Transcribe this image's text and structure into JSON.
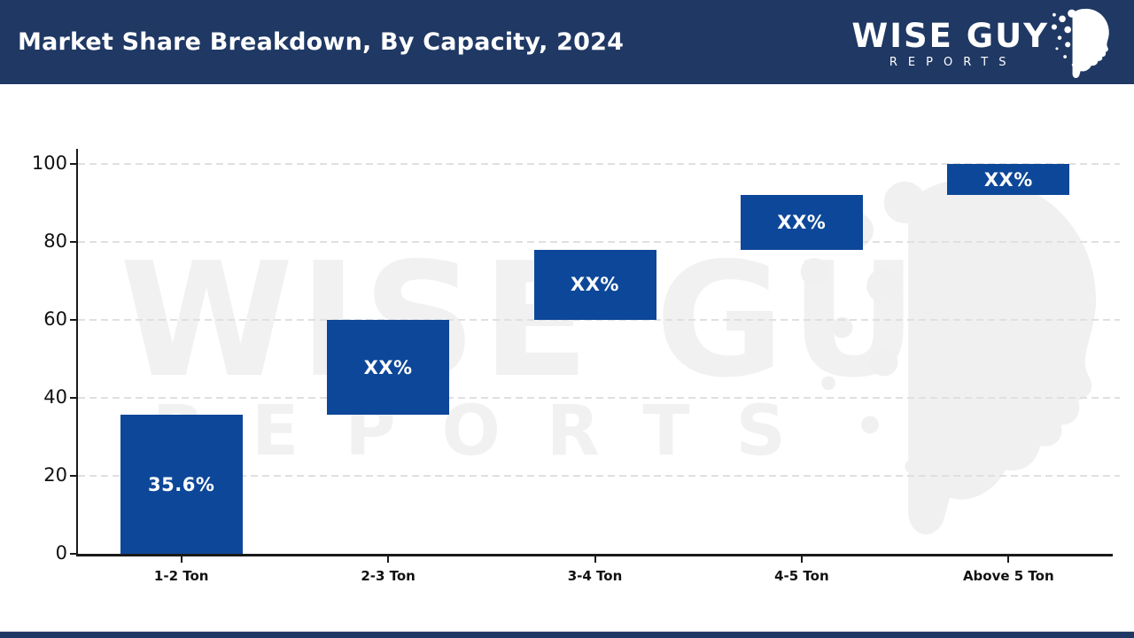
{
  "header": {
    "title": "Market Share Breakdown, By Capacity, 2024",
    "logo": {
      "line1": "WISE GUY",
      "line2": "REPORTS"
    }
  },
  "watermark": {
    "line1": "WISE GUY",
    "line2": "REPORTS"
  },
  "colors": {
    "navy": "#1F3864",
    "bar_blue": "#0D4799",
    "grid_gray": "#E0E0E0",
    "watermark_gray": "#F1F1F1",
    "axis_black": "#1A1A1A",
    "bar_label_white": "#FFFFFF"
  },
  "chart_data": {
    "type": "bar",
    "subtype": "waterfall",
    "title": "Market Share Breakdown, By Capacity, 2024",
    "xlabel": "",
    "ylabel": "",
    "categories": [
      "1-2 Ton",
      "2-3 Ton",
      "3-4 Ton",
      "4-5 Ton",
      "Above 5 Ton"
    ],
    "segments": [
      {
        "category": "1-2 Ton",
        "start": 0,
        "end": 35.6,
        "label": "35.6%"
      },
      {
        "category": "2-3 Ton",
        "start": 35.6,
        "end": 60,
        "label": "XX%"
      },
      {
        "category": "3-4 Ton",
        "start": 60,
        "end": 78,
        "label": "XX%"
      },
      {
        "category": "4-5 Ton",
        "start": 78,
        "end": 92,
        "label": "XX%"
      },
      {
        "category": "Above 5 Ton",
        "start": 92,
        "end": 100,
        "label": "XX%"
      }
    ],
    "yticks": [
      0,
      20,
      40,
      60,
      80,
      100
    ],
    "ylim": [
      0,
      100
    ],
    "grid": "horizontal dashed",
    "legend": "none"
  }
}
